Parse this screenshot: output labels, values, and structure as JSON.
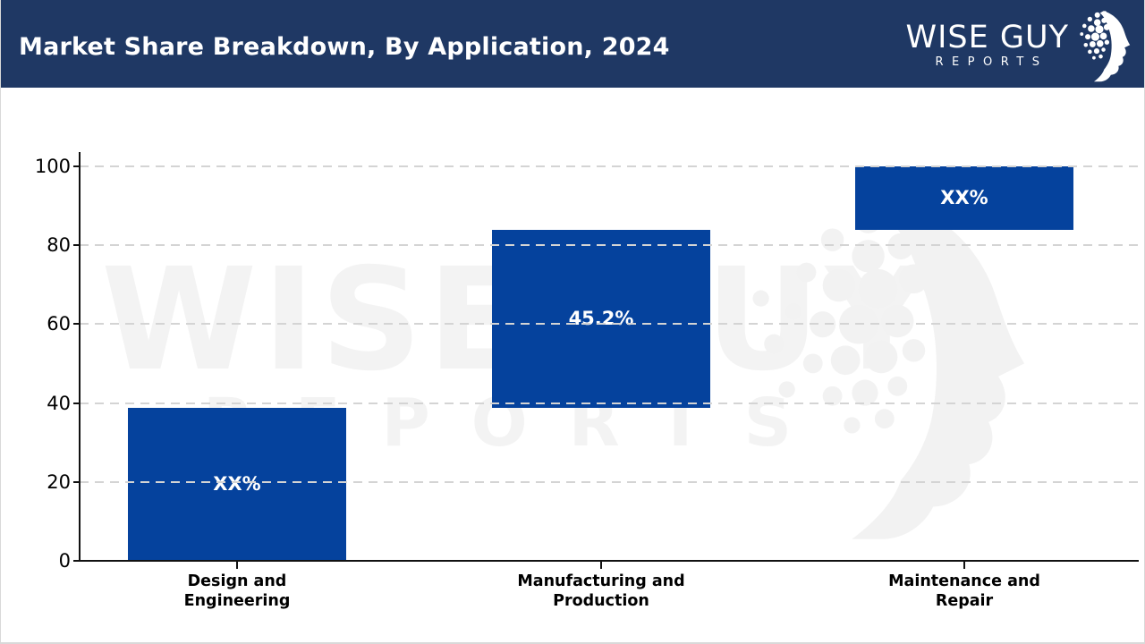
{
  "colors": {
    "header_bg": "#1F3864",
    "bar": "#05429D",
    "grid": "#D4D4D4",
    "axis": "#111111",
    "watermark": "#F3F3F3",
    "page_border": "#D9D9D9"
  },
  "header": {
    "title": "Market Share Breakdown, By Application, 2024",
    "logo_line1": "WISE GUY",
    "logo_line2": "REPORTS"
  },
  "watermark": {
    "line1": "WISE GUY",
    "line2": "REPORTS"
  },
  "chart_data": {
    "type": "bar",
    "subtype": "waterfall",
    "title": "Market Share Breakdown, By Application, 2024",
    "categories": [
      [
        "Design and",
        "Engineering"
      ],
      [
        "Manufacturing and",
        "Production"
      ],
      [
        "Maintenance and",
        "Repair"
      ]
    ],
    "segments": [
      {
        "start": 0,
        "end": 38.8,
        "label": "XX%"
      },
      {
        "start": 38.8,
        "end": 84.0,
        "label": "45.2%"
      },
      {
        "start": 84.0,
        "end": 100,
        "label": "XX%"
      }
    ],
    "yticks": [
      0,
      20,
      40,
      60,
      80,
      100
    ],
    "ylim": [
      0,
      105
    ],
    "xlabel": "",
    "ylabel": "",
    "grid": "horizontal-dashed",
    "legend": "none"
  }
}
